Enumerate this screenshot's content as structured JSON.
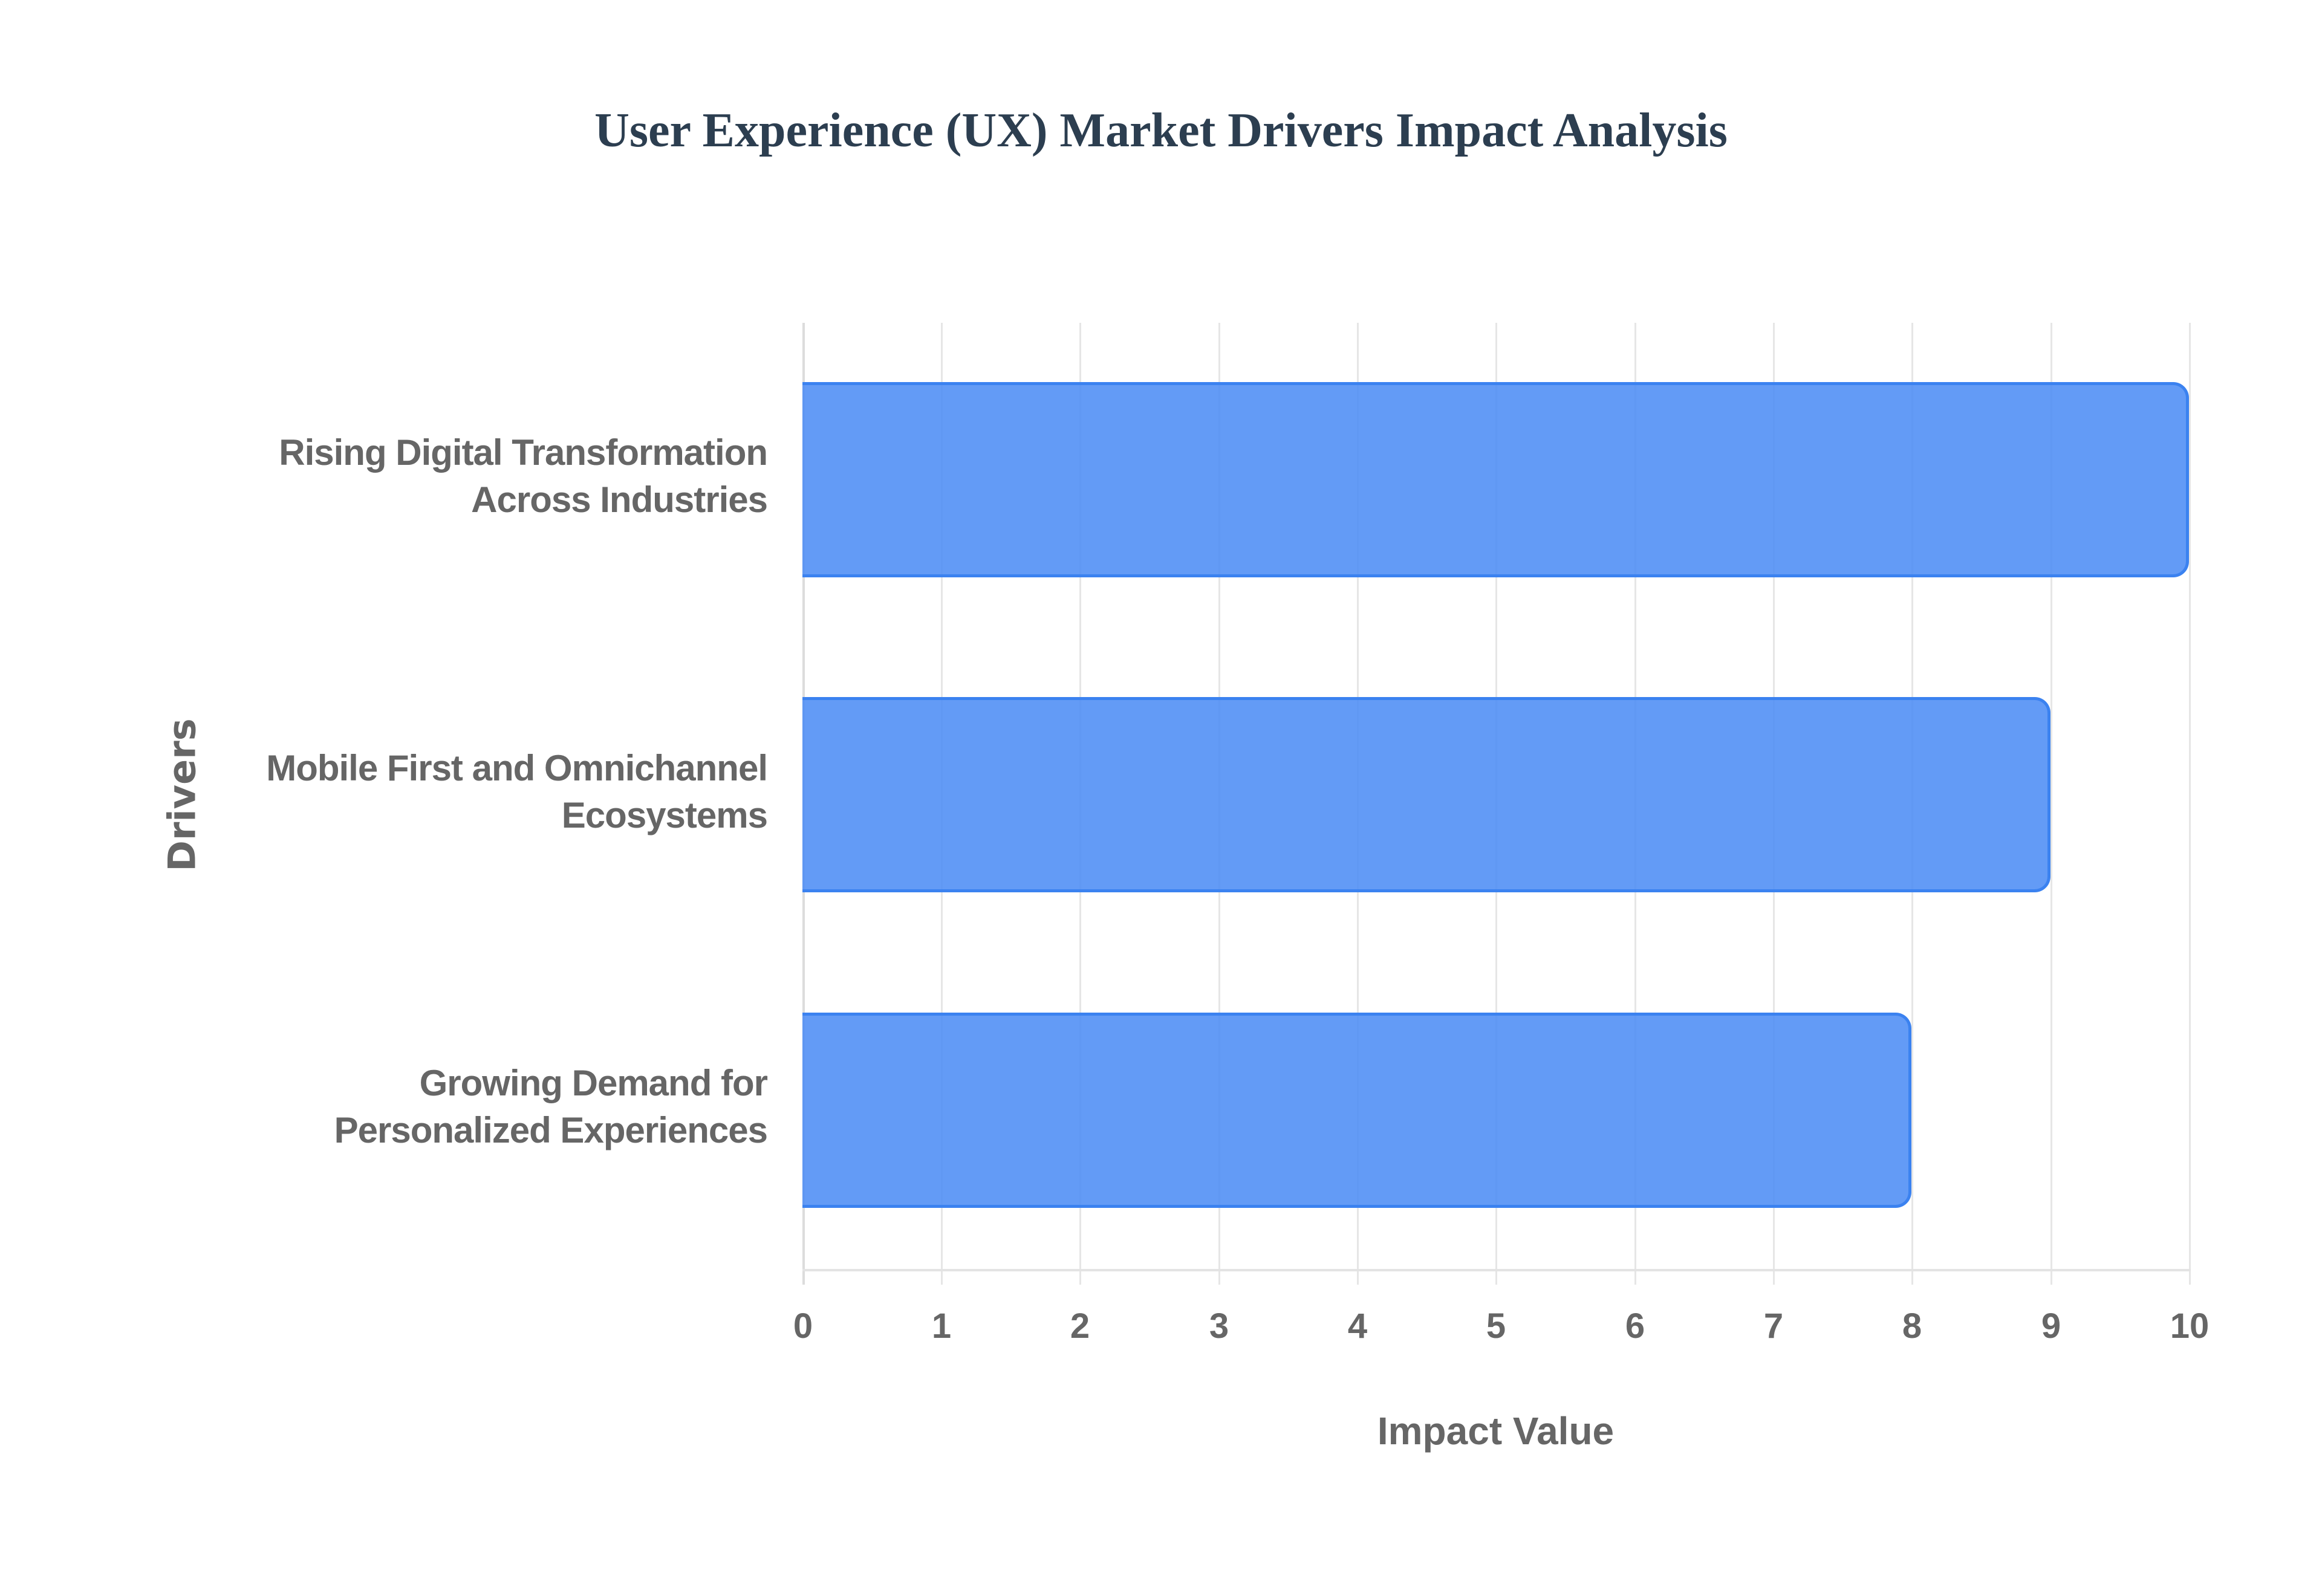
{
  "title": "User Experience (UX) Market Drivers Impact Analysis",
  "colors": {
    "bar_fill": "#4d8df5",
    "bar_border": "#3b82f0",
    "title": "#2c3e50",
    "axis_text": "#666666",
    "grid": "#e6e6e6"
  },
  "axes": {
    "x_title": "Impact Value",
    "y_title": "Drivers",
    "x_ticks": [
      "0",
      "1",
      "2",
      "3",
      "4",
      "5",
      "6",
      "7",
      "8",
      "9",
      "10"
    ]
  },
  "categories": [
    {
      "line1": "Rising Digital Transformation",
      "line2": "Across Industries",
      "value": 10
    },
    {
      "line1": "Mobile First and Omnichannel",
      "line2": "Ecosystems",
      "value": 9
    },
    {
      "line1": "Growing Demand for",
      "line2": "Personalized Experiences",
      "value": 8
    }
  ],
  "chart_data": {
    "type": "bar",
    "orientation": "horizontal",
    "title": "User Experience (UX) Market Drivers Impact Analysis",
    "categories": [
      "Rising Digital Transformation Across Industries",
      "Mobile First and Omnichannel Ecosystems",
      "Growing Demand for Personalized Experiences"
    ],
    "values": [
      10,
      9,
      8
    ],
    "xlabel": "Impact Value",
    "ylabel": "Drivers",
    "xlim": [
      0,
      10
    ],
    "x_ticks": [
      0,
      1,
      2,
      3,
      4,
      5,
      6,
      7,
      8,
      9,
      10
    ],
    "grid": true,
    "legend": "none"
  }
}
